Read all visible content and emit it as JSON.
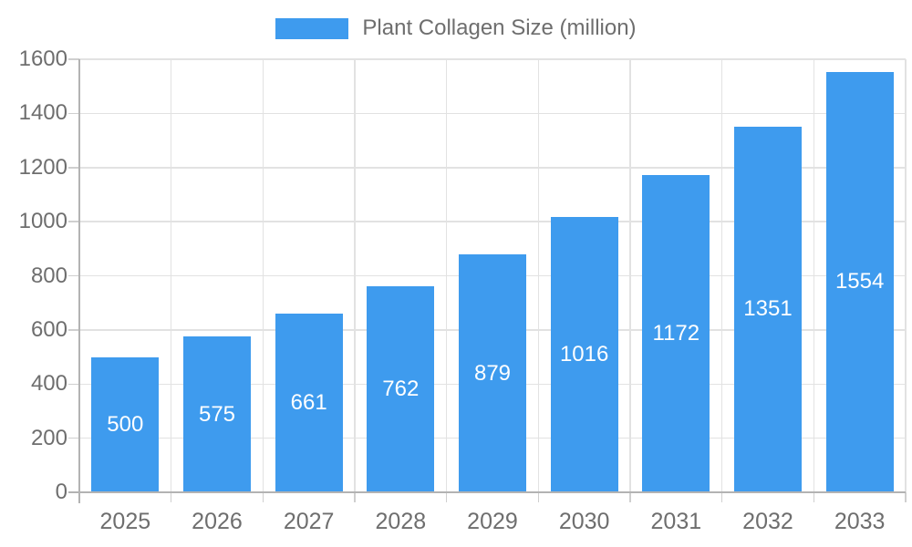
{
  "legend": {
    "label": "Plant Collagen Size (million)"
  },
  "colors": {
    "bar": "#3E9BEE",
    "grid": "#E2E2E2",
    "axis": "#B3B3B3",
    "tick": "#CFCFCF",
    "text": "#6E6E6E",
    "value_label": "#FFFFFF",
    "background": "#FFFFFF"
  },
  "chart_data": {
    "type": "bar",
    "title": "Plant Collagen Size (million)",
    "categories": [
      "2025",
      "2026",
      "2027",
      "2028",
      "2029",
      "2030",
      "2031",
      "2032",
      "2033"
    ],
    "values": [
      500,
      575,
      661,
      762,
      879,
      1016,
      1172,
      1351,
      1554
    ],
    "xlabel": "",
    "ylabel": "",
    "ylim": [
      0,
      1600
    ],
    "ytick_step": 200,
    "yticks": [
      0,
      200,
      400,
      600,
      800,
      1000,
      1200,
      1400,
      1600
    ],
    "grid": true,
    "legend_position": "top-center",
    "bar_value_labels": "white, centered inside bars"
  }
}
